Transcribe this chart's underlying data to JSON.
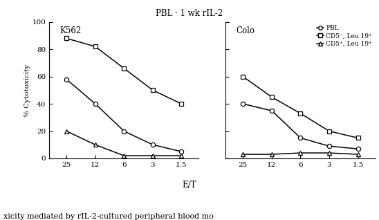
{
  "title": "PBL · 1 wk rIL-2",
  "xlabel": "E/T",
  "ylabel": "% Cytotoxicity",
  "x_labels": [
    "25",
    "12",
    "6",
    "3",
    "1.5"
  ],
  "ylim": [
    0,
    100
  ],
  "yticks": [
    0,
    20,
    40,
    60,
    80,
    100
  ],
  "k562_pbl": [
    58,
    40,
    20,
    10,
    5
  ],
  "k562_cd5neg": [
    88,
    82,
    66,
    50,
    40
  ],
  "k562_cd5pos": [
    20,
    10,
    2,
    2,
    2
  ],
  "colo_pbl": [
    40,
    35,
    15,
    9,
    7
  ],
  "colo_cd5neg": [
    60,
    45,
    33,
    20,
    15
  ],
  "colo_cd5pos": [
    3,
    3,
    4,
    4,
    3
  ],
  "legend_labels": [
    "PBL",
    "CD5⁻, Leu 19⁺",
    "CD5⁺, Leu 19⁺"
  ],
  "panel_labels": [
    "K562",
    "Colo"
  ],
  "bottom_caption": "xicity mediated by rIL-2-cultured peripheral blood mo"
}
